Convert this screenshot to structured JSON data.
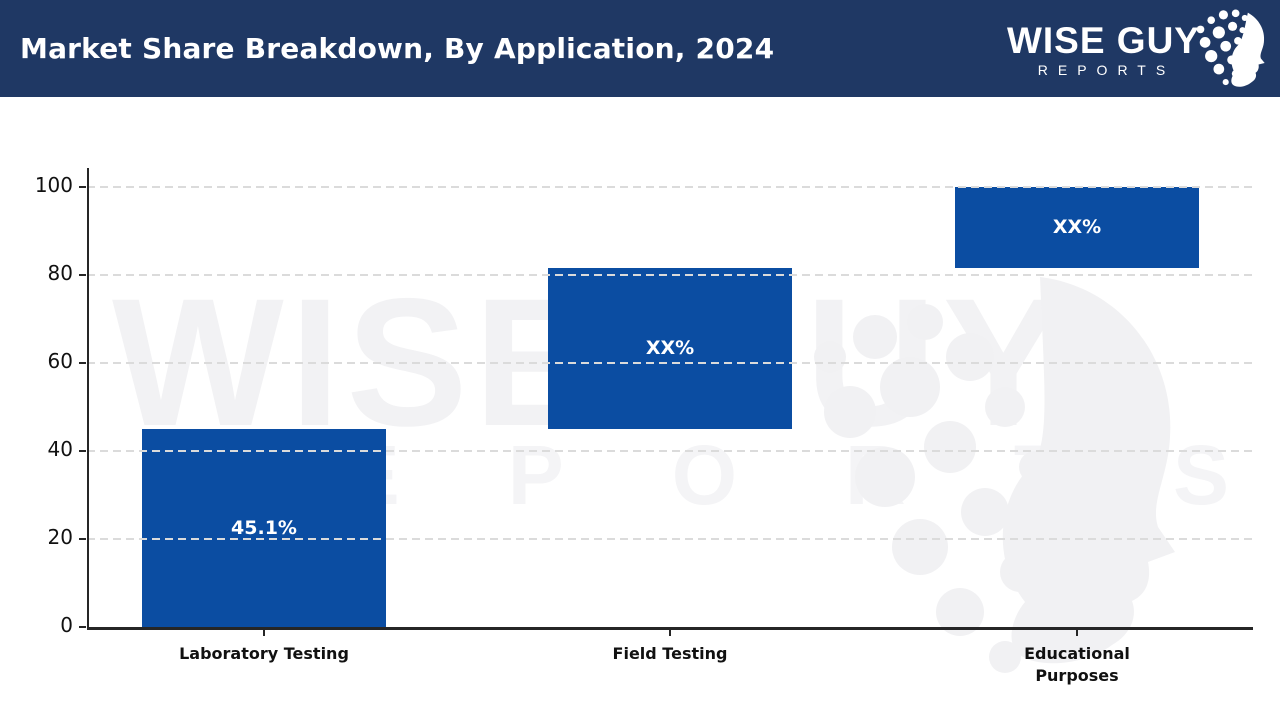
{
  "header": {
    "title": "Market Share Breakdown, By Application, 2024",
    "bg_color": "#1F3864",
    "logo": {
      "line1": "WISE GUY",
      "line2": "REPORTS",
      "head_icon": "wiseguy-head-icon"
    }
  },
  "watermark": {
    "line1": "WISE GUY",
    "line2": "REPORTS",
    "head_icon": "wiseguy-head-watermark-icon"
  },
  "chart_data": {
    "type": "bar",
    "subtype": "waterfall-stacked",
    "title": "Market Share Breakdown, By Application, 2024",
    "categories": [
      "Laboratory Testing",
      "Field Testing",
      "Educational Purposes"
    ],
    "segments": [
      {
        "category": "Laboratory Testing",
        "start": 0,
        "end": 45.1,
        "label": "45.1%",
        "share_shown": "45.1%"
      },
      {
        "category": "Field Testing",
        "start": 45.1,
        "end": 81.6,
        "label": "XX%",
        "share_shown": "XX%"
      },
      {
        "category": "Educational Purposes",
        "start": 81.6,
        "end": 100,
        "label": "XX%",
        "share_shown": "XX%"
      }
    ],
    "xlabel": "",
    "ylabel": "",
    "ylim": [
      0,
      100
    ],
    "yticks": [
      0,
      20,
      40,
      60,
      80,
      100
    ],
    "grid": "horizontal-dashed",
    "legend": "none",
    "bar_color": "#0B4DA2",
    "bar_label_color": "#ffffff",
    "axis_color": "#262626",
    "grid_color": "#dbdbdb"
  }
}
